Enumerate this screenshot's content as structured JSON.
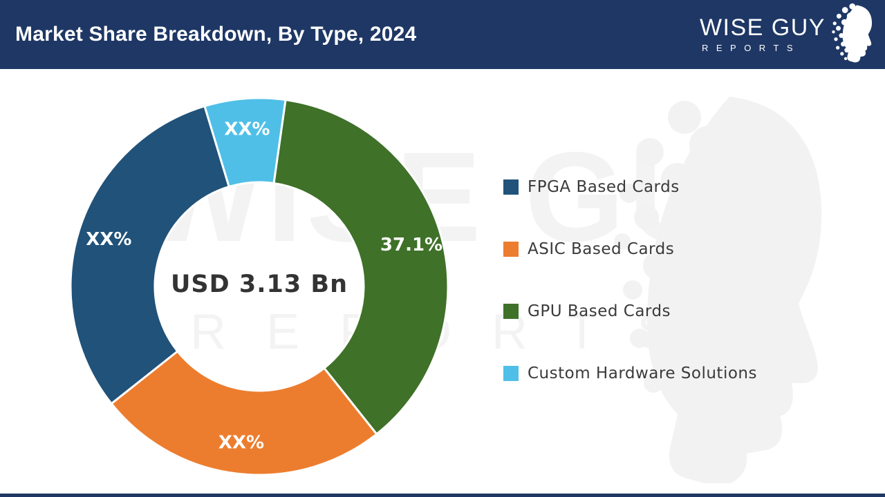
{
  "header": {
    "title": "Market Share Breakdown, By Type, 2024",
    "logo": {
      "line1": "WISE GUY",
      "line2": "REPORTS"
    }
  },
  "watermark": {
    "line1": "WISE GUY",
    "line2": "REPORTS"
  },
  "chart_data": {
    "type": "donut",
    "title": "Market Share Breakdown, By Type, 2024",
    "center_label": "USD 3.13 Bn",
    "start_angle_deg": 8,
    "legend_position": "right",
    "segments": [
      {
        "name": "GPU Based Cards",
        "value": 37.1,
        "label": "37.1%",
        "color": "#3f7129",
        "label_color": "#ffffff"
      },
      {
        "name": "ASIC Based Cards",
        "value": 25.0,
        "label": "XX%",
        "color": "#ed7d2e",
        "label_color": "#ffffff"
      },
      {
        "name": "FPGA Based Cards",
        "value": 31.0,
        "label": "XX%",
        "color": "#20527a",
        "label_color": "#ffffff"
      },
      {
        "name": "Custom Hardware Solutions",
        "value": 6.9,
        "label": "XX%",
        "color": "#4fbfe8",
        "label_color": "#ffffff"
      }
    ],
    "legend": [
      {
        "label": "FPGA Based Cards",
        "color": "#20527a"
      },
      {
        "label": "ASIC Based Cards",
        "color": "#ed7d2e"
      },
      {
        "label": "GPU Based Cards",
        "color": "#3f7129"
      },
      {
        "label": "Custom Hardware Solutions",
        "color": "#4fbfe8"
      }
    ]
  },
  "colors": {
    "header_bg": "#1e3765",
    "footer_bg": "#1e3765",
    "center_text": "#333333",
    "legend_text": "#3a3a3a",
    "watermark": "#f3f3f3",
    "segment_border": "#ffffff"
  }
}
